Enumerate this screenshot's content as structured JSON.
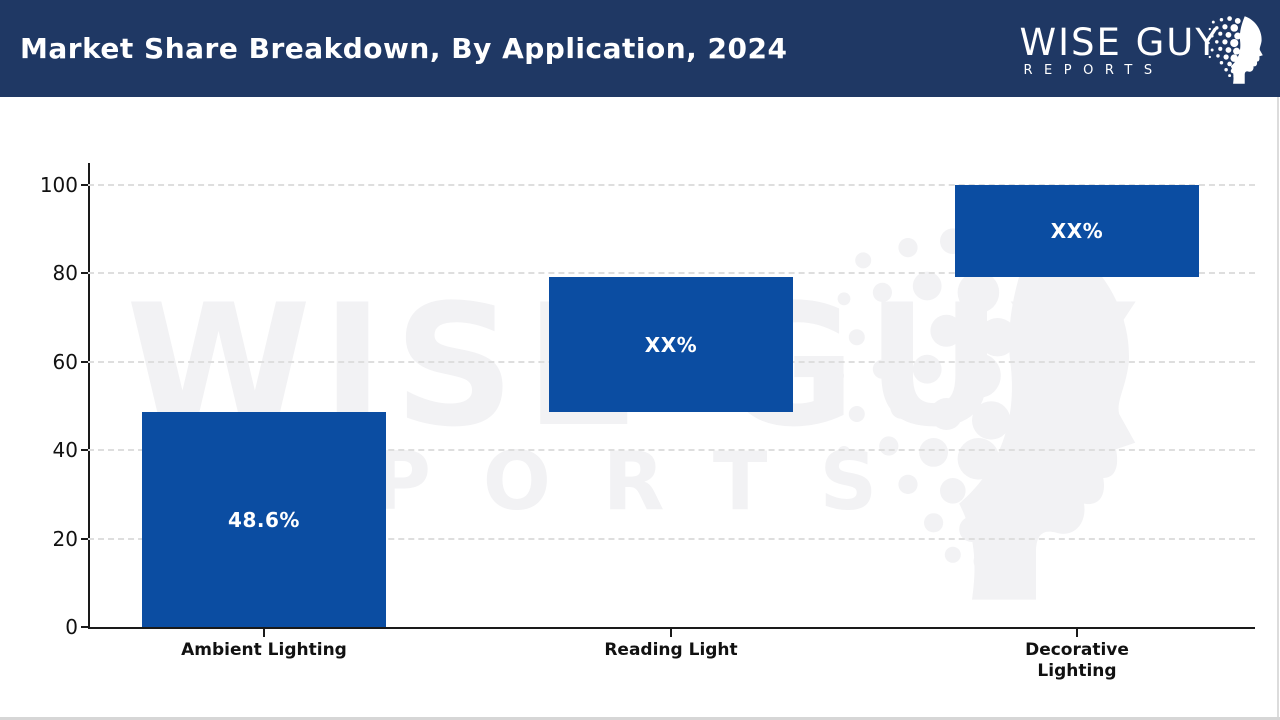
{
  "header": {
    "title": "Market Share Breakdown, By Application, 2024"
  },
  "logo": {
    "brand_line1": "WISE GUY",
    "brand_line2": "REPORTS"
  },
  "watermark": {
    "line1": "WISE GUY",
    "line2": "REPORTS"
  },
  "colors": {
    "header_navy": "#1f3864",
    "bar_blue": "#0b4da2",
    "bar_label_white": "#ffffff",
    "watermark_gray": "#f2f2f4",
    "axis_black": "#1a1a1a",
    "gridline_gray": "#dedede"
  },
  "chart_data": {
    "type": "bar",
    "subtype": "waterfall-stacked",
    "title": "Market Share Breakdown, By Application, 2024",
    "categories": [
      "Ambient Lighting",
      "Reading Light",
      "Decorative\nLighting"
    ],
    "series": [
      {
        "name": "Market Share %",
        "segments": [
          {
            "category": "Ambient Lighting",
            "start": 0,
            "end": 48.6,
            "label": "48.6%"
          },
          {
            "category": "Reading Light",
            "start": 48.6,
            "end": 79.2,
            "label": "XX%"
          },
          {
            "category": "Decorative Lighting",
            "start": 79.2,
            "end": 100,
            "label": "XX%"
          }
        ]
      }
    ],
    "yticks": [
      0,
      20,
      40,
      60,
      80,
      100
    ],
    "ylim": [
      0,
      105
    ],
    "xlabel": "",
    "ylabel": "",
    "grid": "horizontal-dashed",
    "legend": "none",
    "bar_color": "#0b4da2"
  }
}
